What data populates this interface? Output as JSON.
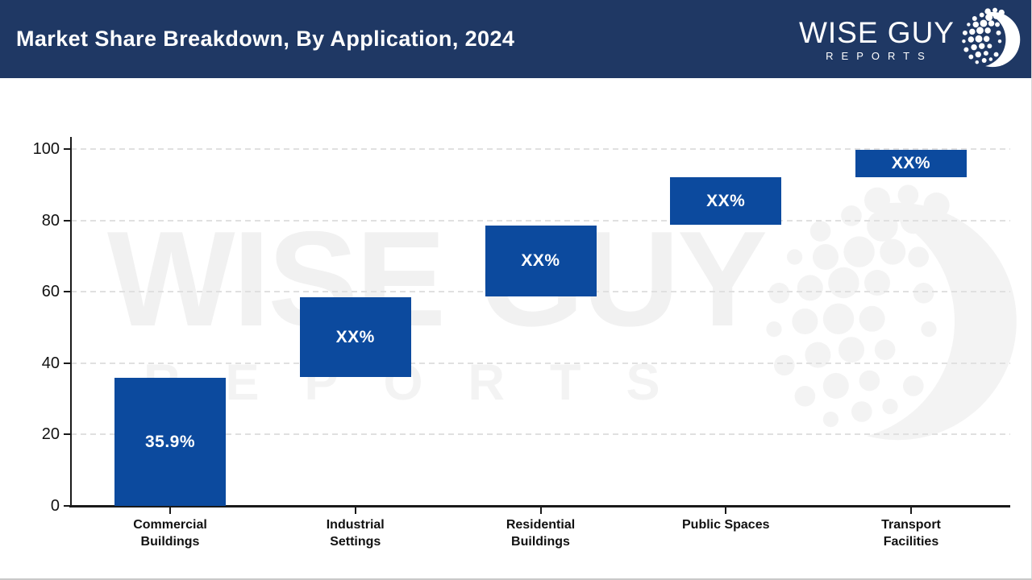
{
  "header": {
    "title": "Market Share Breakdown, By Application, 2024",
    "brand": {
      "name": "WISE GUY",
      "sub": "REPORTS"
    }
  },
  "watermark": {
    "line1": "WISE GUY",
    "line2": "REPORTS"
  },
  "colors": {
    "header_bg": "#1f3864",
    "bar": "#0c4a9e",
    "grid": "#e0e0e0",
    "axis": "#1a1a1a",
    "bar_label": "#ffffff",
    "watermark": "#f1f1f1"
  },
  "chart_data": {
    "type": "bar",
    "subtype": "waterfall",
    "title": "Market Share Breakdown, By Application, 2024",
    "xlabel": "",
    "ylabel": "",
    "ylim": [
      0,
      103.5
    ],
    "yticks": [
      0,
      20,
      40,
      60,
      80,
      100
    ],
    "grid": "dashed-horizontal",
    "legend": "none",
    "categories": [
      "Commercial Buildings",
      "Industrial Settings",
      "Residential Buildings",
      "Public Spaces",
      "Transport Facilities"
    ],
    "category_label_lines": [
      [
        "Commercial",
        "Buildings"
      ],
      [
        "Industrial",
        "Settings"
      ],
      [
        "Residential",
        "Buildings"
      ],
      [
        "Public Spaces"
      ],
      [
        "Transport",
        "Facilities"
      ]
    ],
    "segments": [
      {
        "category": "Commercial Buildings",
        "start": 0.0,
        "end": 35.9,
        "label": "35.9%"
      },
      {
        "category": "Industrial Settings",
        "start": 36.1,
        "end": 58.5,
        "label": "XX%"
      },
      {
        "category": "Residential Buildings",
        "start": 58.7,
        "end": 78.6,
        "label": "XX%"
      },
      {
        "category": "Public Spaces",
        "start": 78.8,
        "end": 92.1,
        "label": "XX%"
      },
      {
        "category": "Transport Facilities",
        "start": 92.3,
        "end": 99.9,
        "label": "XX%"
      }
    ]
  }
}
